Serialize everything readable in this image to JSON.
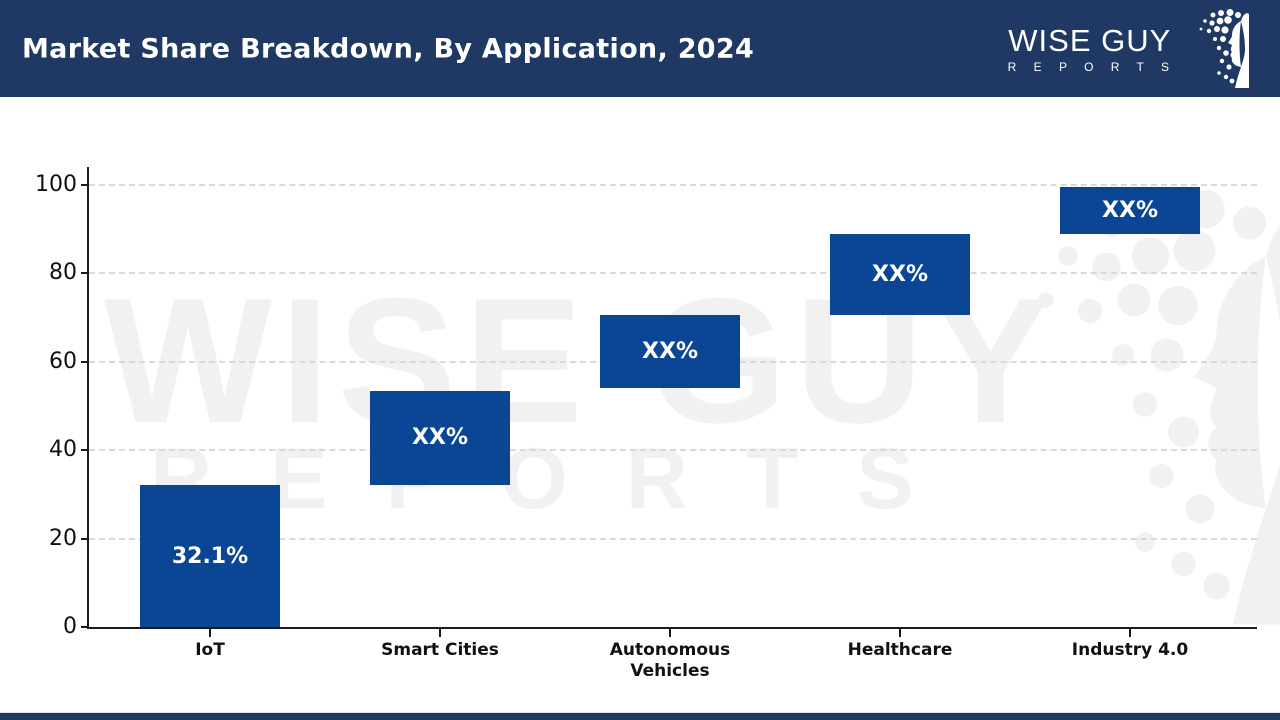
{
  "header": {
    "title": "Market Share Breakdown, By Application, 2024",
    "bg_color": "#1F3864",
    "logo": {
      "wordmark": "WISE GUY",
      "subtext": "R E P O R T S"
    }
  },
  "watermark": {
    "line1": "WISE GUY",
    "line2": "REPORTS"
  },
  "chart_data": {
    "type": "bar",
    "variant": "waterfall",
    "title": "Market Share Breakdown, By Application, 2024",
    "categories": [
      "IoT",
      "Smart Cities",
      "Autonomous Vehicles",
      "Healthcare",
      "Industry 4.0"
    ],
    "bars": [
      {
        "category": "IoT",
        "start": 0,
        "end": 32.1,
        "label": "32.1%"
      },
      {
        "category": "Smart Cities",
        "start": 32.1,
        "end": 53.5,
        "label": "XX%"
      },
      {
        "category": "Autonomous Vehicles",
        "start": 54,
        "end": 70.5,
        "label": "XX%"
      },
      {
        "category": "Healthcare",
        "start": 70.5,
        "end": 89,
        "label": "XX%"
      },
      {
        "category": "Industry 4.0",
        "start": 89,
        "end": 99.5,
        "label": "XX%"
      }
    ],
    "xlabel": "",
    "ylabel": "",
    "ylim": [
      0,
      100
    ],
    "yticks": [
      0,
      20,
      40,
      60,
      80,
      100
    ],
    "grid": "horizontal-dashed",
    "legend": "none",
    "bar_color": "#0A4596",
    "bar_label_color": "#ffffff"
  }
}
